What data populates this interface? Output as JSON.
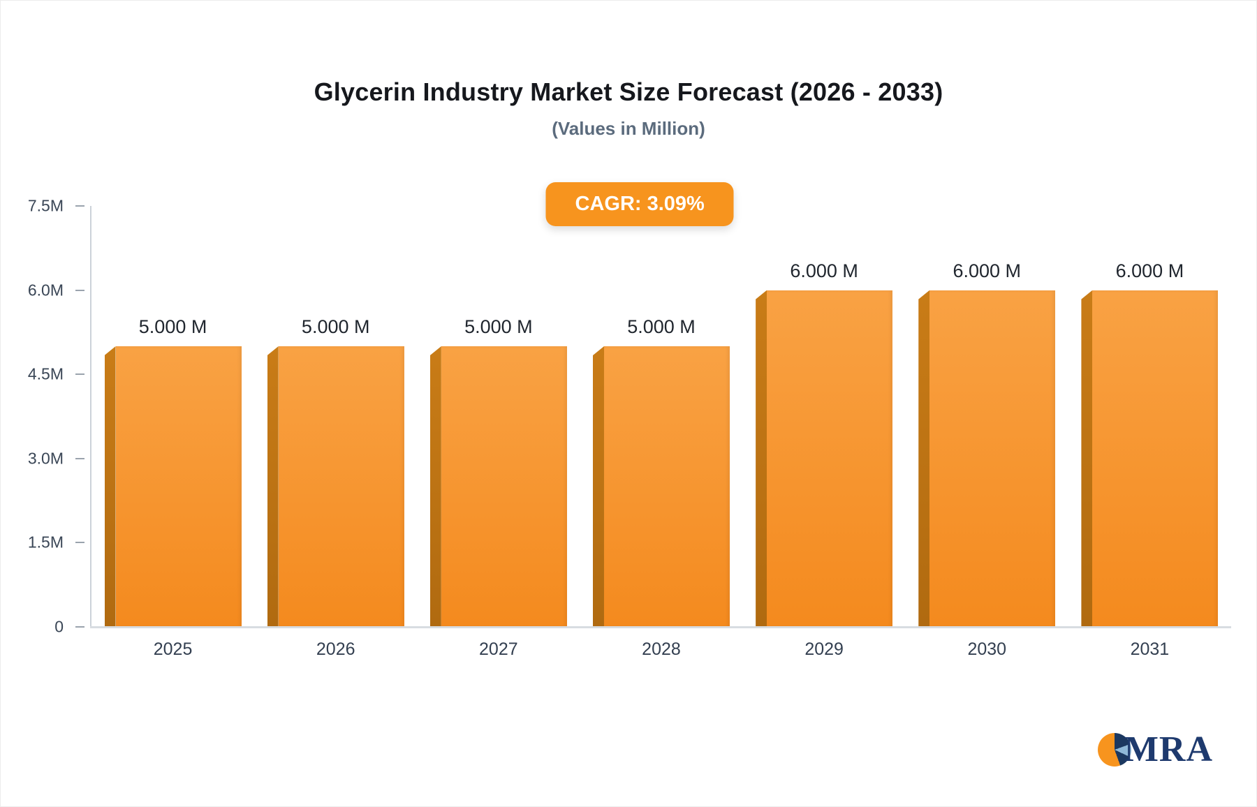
{
  "header": {
    "title": "Glycerin Industry Market Size Forecast (2026 - 2033)",
    "subtitle": "(Values in Million)"
  },
  "badge": {
    "label": "CAGR: 3.09%",
    "bg_color": "#F7941E",
    "text_color": "#ffffff"
  },
  "chart_data": {
    "type": "bar",
    "title": "Glycerin Industry Market Size Forecast (2026 - 2033)",
    "subtitle": "(Values in Million)",
    "unit": "Million",
    "categories": [
      "2025",
      "2026",
      "2027",
      "2028",
      "2029",
      "2030",
      "2031"
    ],
    "values": [
      5.0,
      5.0,
      5.0,
      5.0,
      6.0,
      6.0,
      6.0
    ],
    "data_labels": [
      "5.000 M",
      "5.000 M",
      "5.000 M",
      "5.000 M",
      "6.000 M",
      "6.000 M",
      "6.000 M"
    ],
    "ylim": [
      0,
      7.5
    ],
    "y_ticks": [
      {
        "value": 0,
        "label": "0"
      },
      {
        "value": 1.5,
        "label": "1.5M"
      },
      {
        "value": 3.0,
        "label": "3.0M"
      },
      {
        "value": 4.5,
        "label": "4.5M"
      },
      {
        "value": 6.0,
        "label": "6.0M"
      },
      {
        "value": 7.5,
        "label": "7.5M"
      }
    ],
    "xlabel": "",
    "ylabel": "",
    "grid": false,
    "legend": false,
    "annotation": "CAGR: 3.09%",
    "bar_color": "#F48A1E",
    "bar_color_top": "#F9A244",
    "bar_side_color": "#B06A10"
  },
  "logo": {
    "text": "MRA",
    "icon": "pie-circle-icon",
    "colors": [
      "#F7941E",
      "#1c3860",
      "#8fb8d8"
    ]
  }
}
